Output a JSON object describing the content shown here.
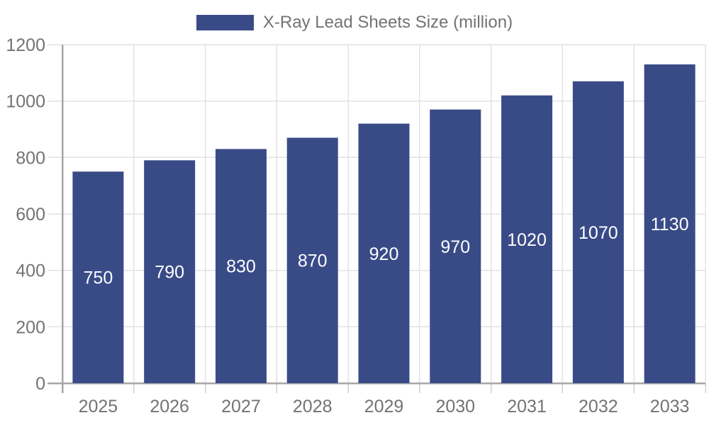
{
  "chart_data": {
    "type": "bar",
    "title": "X-Ray Lead Sheets Size (million)",
    "categories": [
      "2025",
      "2026",
      "2027",
      "2028",
      "2029",
      "2030",
      "2031",
      "2032",
      "2033"
    ],
    "values": [
      750,
      790,
      830,
      870,
      920,
      970,
      1020,
      1070,
      1130
    ],
    "xlabel": "",
    "ylabel": "",
    "ylim": [
      0,
      1200
    ],
    "ytick_step": 200,
    "ytick_labels": [
      "0",
      "200",
      "400",
      "600",
      "800",
      "1000",
      "1200"
    ],
    "grid": true,
    "legend_position": "top",
    "colors": {
      "bar": "#394b87",
      "bar_value_label": "#ffffff",
      "grid_line": "#e2e2e2",
      "axis_line": "#a6a6a6",
      "x_tick_mark": "#cfcfcf",
      "axis_text": "#737373",
      "background": "#ffffff"
    }
  }
}
